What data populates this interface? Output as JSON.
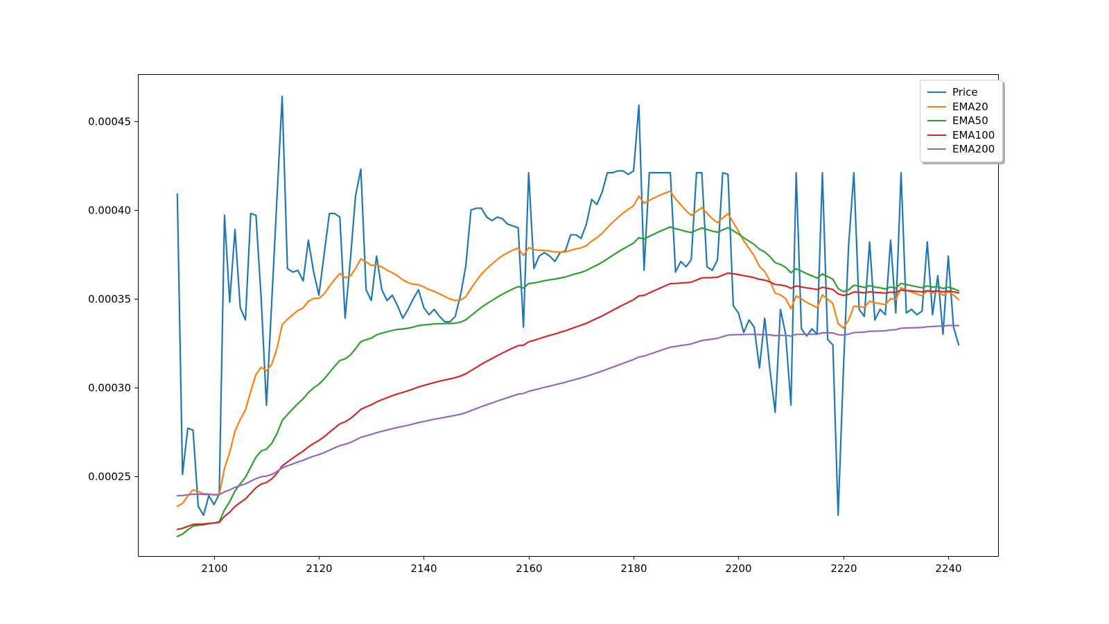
{
  "chart_data": {
    "type": "line",
    "title": "",
    "xlabel": "",
    "ylabel": "",
    "grid": false,
    "background": "#ffffff",
    "legend_position": "upper right",
    "value_unit": 1e-06,
    "x_start": 2093,
    "x_step": 1,
    "xlim": [
      2085.5,
      2249.5
    ],
    "ylim_e6": [
      205,
      476.5
    ],
    "x_ticks_values": [
      2100,
      2120,
      2140,
      2160,
      2180,
      2200,
      2220,
      2240
    ],
    "x_ticks": [
      "2100",
      "2120",
      "2140",
      "2160",
      "2180",
      "2200",
      "2220",
      "2240"
    ],
    "y_ticks_e6": [
      250,
      300,
      350,
      400,
      450
    ],
    "y_tick_labels": [
      "0.00025",
      "0.00030",
      "0.00035",
      "0.00040",
      "0.00045"
    ],
    "series": [
      {
        "name": "Price",
        "color": "#1f77b4",
        "kind": "data",
        "values_e6": [
          409,
          251,
          277,
          276,
          233,
          228,
          239,
          234,
          240,
          397,
          348,
          389,
          345,
          338,
          398,
          397,
          350,
          290,
          348,
          406,
          464,
          367,
          365,
          366,
          360,
          383,
          365,
          352,
          375,
          398,
          398,
          396,
          339,
          372,
          408,
          423,
          355,
          349,
          374,
          355,
          349,
          352,
          346,
          339,
          344,
          350,
          355,
          345,
          341,
          344,
          340,
          337,
          337,
          340,
          352,
          368,
          400,
          401,
          401,
          396,
          394,
          396,
          395,
          392,
          391,
          390,
          334,
          421,
          367,
          374,
          376,
          374,
          371,
          376,
          377,
          386,
          386,
          384,
          392,
          406,
          403,
          410,
          421,
          421,
          422,
          422,
          420,
          422,
          459,
          366,
          421,
          421,
          421,
          421,
          421,
          365,
          371,
          368,
          372,
          421,
          421,
          368,
          366,
          372,
          421,
          420,
          346,
          342,
          331,
          338,
          334,
          311,
          339,
          310,
          286,
          344,
          330,
          290,
          421,
          333,
          329,
          333,
          330,
          421,
          327,
          324,
          228,
          310,
          380,
          421,
          344,
          340,
          382,
          338,
          344,
          341,
          383,
          342,
          421,
          342,
          344,
          341,
          343,
          382,
          341,
          363,
          330,
          374,
          334,
          324
        ]
      },
      {
        "name": "EMA20",
        "color": "#ff7f0e",
        "kind": "ema_of_price",
        "period": 20,
        "seed_e6": 233,
        "measured_anchors_e6": {
          "2093": 233,
          "2100": 238,
          "2110": 303,
          "2113": 315,
          "2120": 350,
          "2130": 372,
          "2140": 364,
          "2149": 353,
          "2160": 379,
          "2172": 385,
          "2187": 410,
          "2200": 394,
          "2210": 353,
          "2221": 338,
          "2231": 352,
          "2242": 349
        }
      },
      {
        "name": "EMA50",
        "color": "#2ca02c",
        "kind": "ema_of_price",
        "period": 50,
        "seed_e6": 216,
        "measured_anchors_e6": {
          "2093": 217,
          "2100": 225,
          "2110": 266,
          "2120": 294,
          "2130": 317,
          "2140": 336,
          "2150": 345,
          "2160": 360,
          "2172": 374,
          "2187": 392,
          "2200": 385,
          "2211": 370,
          "2224": 360,
          "2235": 358,
          "2242": 356
        }
      },
      {
        "name": "EMA100",
        "color": "#d62728",
        "kind": "ema_of_price",
        "period": 100,
        "seed_e6": 220,
        "measured_anchors_e6": {
          "2093": 221,
          "2100": 225,
          "2110": 243,
          "2120": 261,
          "2130": 276,
          "2140": 288,
          "2150": 306,
          "2160": 325,
          "2172": 340,
          "2187": 358,
          "2198": 366,
          "2211": 355,
          "2228": 352,
          "2242": 354
        }
      },
      {
        "name": "EMA200",
        "color": "#9467bd",
        "kind": "ema_of_price",
        "period": 200,
        "seed_e6": 239,
        "measured_anchors_e6": {
          "2093": 239,
          "2100": 240,
          "2110": 252,
          "2120": 262,
          "2130": 273,
          "2140": 285,
          "2151": 295,
          "2170": 312,
          "2190": 326,
          "2203": 331,
          "2215": 333,
          "2230": 335,
          "2242": 337
        }
      }
    ]
  },
  "legend": {
    "entries": [
      "Price",
      "EMA20",
      "EMA50",
      "EMA100",
      "EMA200"
    ]
  }
}
